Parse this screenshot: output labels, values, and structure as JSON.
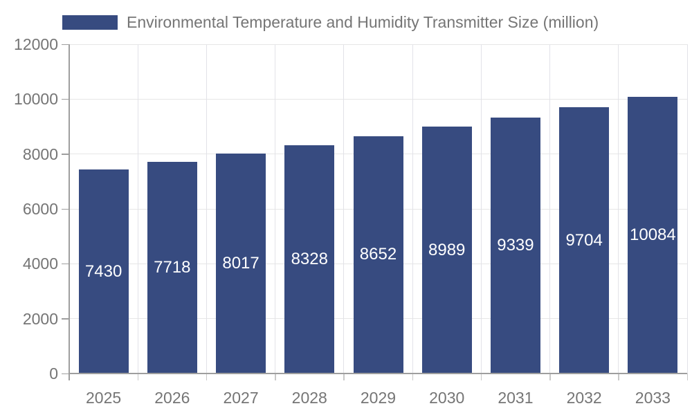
{
  "chart_data": {
    "type": "bar",
    "title": "Environmental Temperature and Humidity Transmitter Size (million)",
    "legend_entries": [
      "Environmental Temperature and Humidity Transmitter Size (million)"
    ],
    "legend_position": "top",
    "categories": [
      "2025",
      "2026",
      "2027",
      "2028",
      "2029",
      "2030",
      "2031",
      "2032",
      "2033"
    ],
    "series": [
      {
        "name": "Environmental Temperature and Humidity Transmitter Size (million)",
        "values": [
          7430,
          7718,
          8017,
          8328,
          8652,
          8989,
          9339,
          9704,
          10084
        ]
      }
    ],
    "value_labels_shown": true,
    "value_label_position": "inside-middle",
    "xlabel": "",
    "ylabel": "",
    "ylim": [
      0,
      12000
    ],
    "yticks": [
      0,
      2000,
      4000,
      6000,
      8000,
      10000,
      12000
    ],
    "grid": true,
    "colors": {
      "bar": "#374B80",
      "bar_value_label": "#FFFFFF",
      "axis_text": "#757575",
      "legend_text": "#757575",
      "axis_line": "#9E9E9E",
      "grid_line_horizontal": "#E6E6E6",
      "grid_line_vertical": "#E2E2E8",
      "tick_line": "#C9C9C9",
      "background": "#FFFFFF"
    }
  }
}
